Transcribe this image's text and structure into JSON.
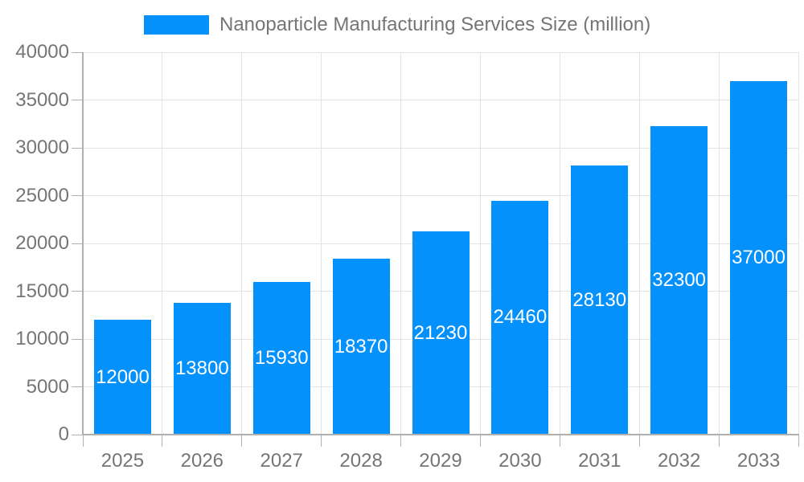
{
  "chart_data": {
    "type": "bar",
    "title": "Nanoparticle Manufacturing Services Size (million)",
    "legend": {
      "position": "top",
      "entries": [
        "Nanoparticle Manufacturing Services Size (million)"
      ]
    },
    "categories": [
      "2025",
      "2026",
      "2027",
      "2028",
      "2029",
      "2030",
      "2031",
      "2032",
      "2033"
    ],
    "series": [
      {
        "name": "Nanoparticle Manufacturing Services Size (million)",
        "values": [
          12000,
          13800,
          15930,
          18370,
          21230,
          24460,
          28130,
          32300,
          37000
        ]
      }
    ],
    "bar_value_labels": [
      "12000",
      "13800",
      "15930",
      "18370",
      "21230",
      "24460",
      "28130",
      "32300",
      "37000"
    ],
    "xlabel": "",
    "ylabel": "",
    "ylim": [
      0,
      40000
    ],
    "ytick_step": 5000,
    "yticks": [
      0,
      5000,
      10000,
      15000,
      20000,
      25000,
      30000,
      35000,
      40000
    ],
    "ytick_labels": [
      "0",
      "5000",
      "10000",
      "15000",
      "20000",
      "25000",
      "30000",
      "35000",
      "40000"
    ],
    "grid": true,
    "colors": {
      "bar": "#0591fb",
      "bar_value_text": "#ffffff",
      "axis_text": "#757575",
      "legend_text": "#757575",
      "gridline": "#e3e3e3",
      "axis_line": "#b0b0b0",
      "background": "#ffffff"
    }
  }
}
